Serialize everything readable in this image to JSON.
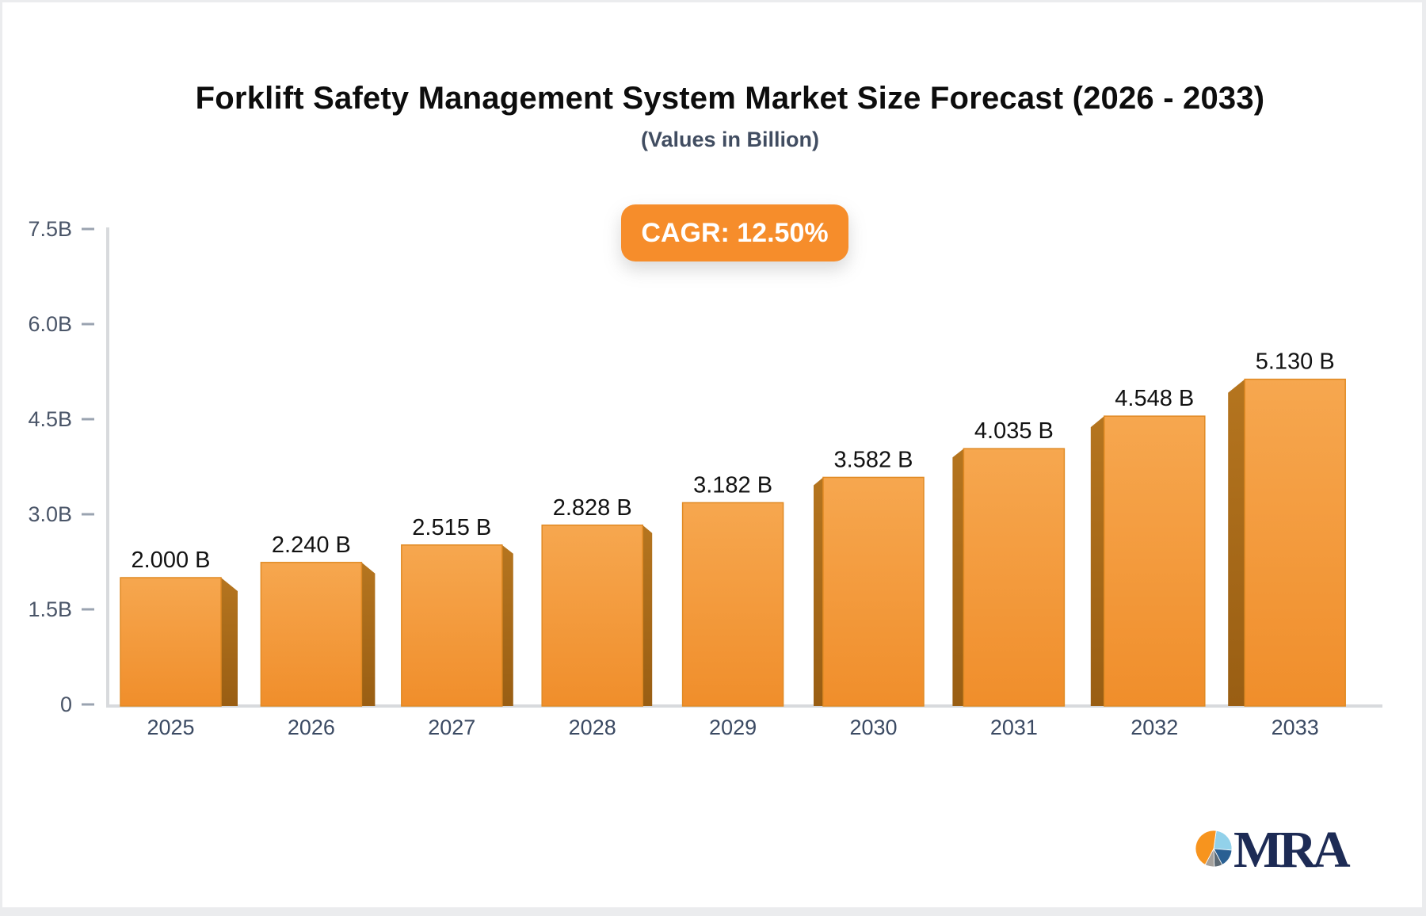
{
  "page": {
    "title": "Forklift Safety Management System Market Size Forecast (2026 - 2033)",
    "subtitle": "(Values in Billion)",
    "badge_label": "CAGR: 12.50%",
    "logo_text": "MRA"
  },
  "colors": {
    "badge_bg": "#f68d2b",
    "badge_text": "#ffffff",
    "bar_front_top": "#f6a74f",
    "bar_front_bottom": "#f08e2b",
    "bar_front_stroke": "#e08a24",
    "bar_side_top": "#b5751f",
    "bar_side_bottom": "#995e13",
    "axis_line": "#d8dadd",
    "tick_dash": "#9aa3b0",
    "y_tick_label": "#4a5568",
    "x_tick_label": "#3b4a63",
    "value_label": "#121212",
    "logo_navy": "#1d2b55"
  },
  "chart_data": {
    "type": "bar",
    "title": "Forklift Safety Management System Market Size Forecast (2026 - 2033)",
    "subtitle": "(Values in Billion)",
    "annotation": "CAGR: 12.50%",
    "categories": [
      "2025",
      "2026",
      "2027",
      "2028",
      "2029",
      "2030",
      "2031",
      "2032",
      "2033"
    ],
    "values": [
      2.0,
      2.24,
      2.515,
      2.828,
      3.182,
      3.582,
      4.035,
      4.548,
      5.13
    ],
    "value_labels": [
      "2.000 B",
      "2.240 B",
      "2.515 B",
      "2.828 B",
      "3.182 B",
      "3.582 B",
      "4.035 B",
      "4.548 B",
      "5.130 B"
    ],
    "xlabel": "",
    "ylabel": "",
    "ylim": [
      0,
      7.5
    ],
    "y_ticks": [
      {
        "value": 0.0,
        "label": "0"
      },
      {
        "value": 1.5,
        "label": "1.5B"
      },
      {
        "value": 3.0,
        "label": "3.0B"
      },
      {
        "value": 4.5,
        "label": "4.5B"
      },
      {
        "value": 6.0,
        "label": "6.0B"
      },
      {
        "value": 7.5,
        "label": "7.5B"
      }
    ],
    "grid": false,
    "legend": false,
    "style": "3d-perspective-columns"
  },
  "logo_pie_slices": [
    {
      "name": "light-blue",
      "color": "#92d1ea",
      "start": 8,
      "end": 95
    },
    {
      "name": "blue",
      "color": "#2a6093",
      "start": 95,
      "end": 152
    },
    {
      "name": "slate",
      "color": "#5d6a74",
      "start": 152,
      "end": 178
    },
    {
      "name": "gray",
      "color": "#a5a19c",
      "start": 178,
      "end": 208
    },
    {
      "name": "orange",
      "color": "#f7941e",
      "start": 208,
      "end": 368
    }
  ]
}
